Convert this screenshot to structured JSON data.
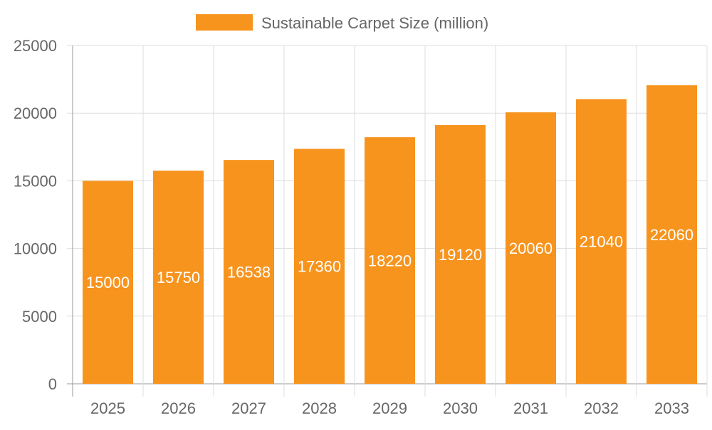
{
  "chart_data": {
    "type": "bar",
    "title": "",
    "xlabel": "",
    "ylabel": "",
    "categories": [
      "2025",
      "2026",
      "2027",
      "2028",
      "2029",
      "2030",
      "2031",
      "2032",
      "2033"
    ],
    "series": [
      {
        "name": "Sustainable Carpet Size (million)",
        "values": [
          15000,
          15750,
          16538,
          17360,
          18220,
          19120,
          20060,
          21040,
          22060
        ],
        "color": "#F7941E"
      }
    ],
    "ylim": [
      0,
      25000
    ],
    "yticks": [
      "0",
      "5000",
      "10000",
      "15000",
      "20000",
      "25000"
    ],
    "grid": true,
    "legend": "top-center",
    "data_labels": true,
    "data_label_color": "#FFFFFF"
  }
}
